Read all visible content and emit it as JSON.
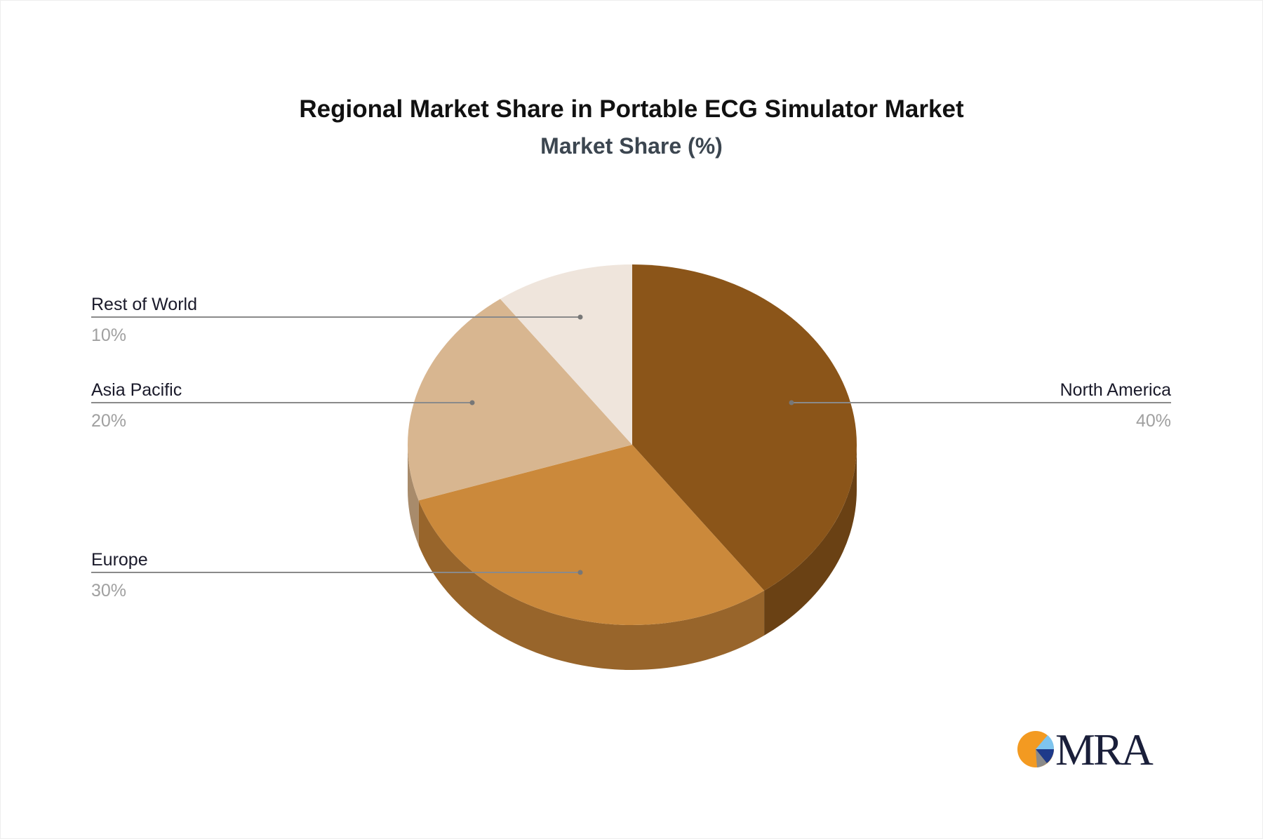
{
  "chart_data": {
    "type": "pie",
    "style": "3d",
    "title": "Regional Market Share in Portable ECG Simulator Market",
    "subtitle": "Market Share (%)",
    "slices": [
      {
        "label": "North America",
        "value": 40,
        "value_label": "40%",
        "color": "#8B5519",
        "side_color": "#6A4114"
      },
      {
        "label": "Europe",
        "value": 30,
        "value_label": "30%",
        "color": "#CB893B",
        "side_color": "#98652B"
      },
      {
        "label": "Asia Pacific",
        "value": 20,
        "value_label": "20%",
        "color": "#D8B690",
        "side_color": "#A88B6B"
      },
      {
        "label": "Rest of World",
        "value": 10,
        "value_label": "10%",
        "color": "#EFE5DC",
        "side_color": "#C9BFB6"
      }
    ]
  },
  "logo": {
    "text": "MRA"
  }
}
